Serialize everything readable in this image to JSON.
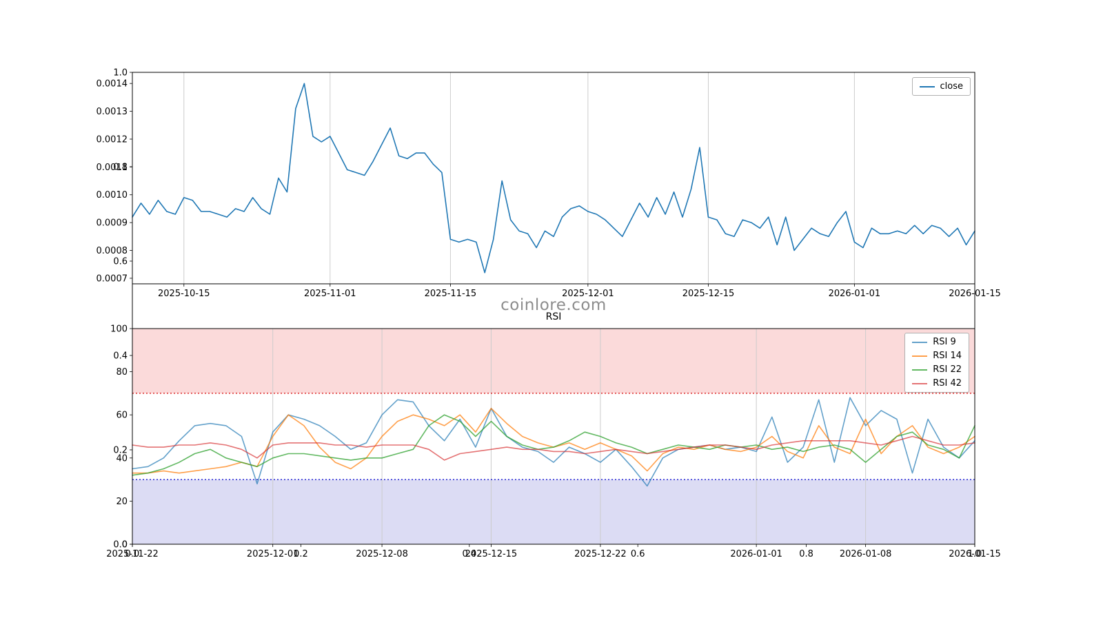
{
  "watermark": "coinlore.com",
  "overlay_axis": {
    "yticks": [
      {
        "label": "0.0",
        "pos": 0.0
      },
      {
        "label": "0.2",
        "pos": 0.2
      },
      {
        "label": "0.4",
        "pos": 0.4
      },
      {
        "label": "0.6",
        "pos": 0.6
      },
      {
        "label": "0.8",
        "pos": 0.8
      },
      {
        "label": "1.0",
        "pos": 1.0
      }
    ],
    "xticks": [
      {
        "label": "0.0",
        "pos": 0.0
      },
      {
        "label": "0.2",
        "pos": 0.2
      },
      {
        "label": "0.4",
        "pos": 0.4
      },
      {
        "label": "0.6",
        "pos": 0.6
      },
      {
        "label": "0.8",
        "pos": 0.8
      },
      {
        "label": "1.0",
        "pos": 1.0
      }
    ]
  },
  "chart_data": [
    {
      "type": "line",
      "title": "",
      "x_start": "2025-10-09",
      "x_end": "2026-01-15",
      "ylim": [
        0.00068,
        0.00144
      ],
      "grid": "vertical",
      "legend_position": "upper right",
      "xticks": [
        {
          "label": "2025-10-15",
          "pos": 0.0612
        },
        {
          "label": "2025-11-01",
          "pos": 0.2347
        },
        {
          "label": "2025-11-15",
          "pos": 0.3776
        },
        {
          "label": "2025-12-01",
          "pos": 0.5408
        },
        {
          "label": "2025-12-15",
          "pos": 0.6837
        },
        {
          "label": "2026-01-01",
          "pos": 0.8571
        },
        {
          "label": "2026-01-15",
          "pos": 1.0
        }
      ],
      "yticks": [
        {
          "label": "0.0007",
          "value": 0.0007
        },
        {
          "label": "0.0008",
          "value": 0.0008
        },
        {
          "label": "0.0009",
          "value": 0.0009
        },
        {
          "label": "0.0010",
          "value": 0.001
        },
        {
          "label": "0.0011",
          "value": 0.0011
        },
        {
          "label": "0.0012",
          "value": 0.0012
        },
        {
          "label": "0.0013",
          "value": 0.0013
        },
        {
          "label": "0.0014",
          "value": 0.0014
        }
      ],
      "series": [
        {
          "name": "close",
          "color": "#1f77b4",
          "opacity": 1,
          "values": [
            0.00092,
            0.00097,
            0.00093,
            0.00098,
            0.00094,
            0.00093,
            0.00099,
            0.00098,
            0.00094,
            0.00094,
            0.00093,
            0.00092,
            0.00095,
            0.00094,
            0.00099,
            0.00095,
            0.00093,
            0.00106,
            0.00101,
            0.00131,
            0.0014,
            0.00121,
            0.00119,
            0.00121,
            0.00115,
            0.00109,
            0.00108,
            0.00107,
            0.00112,
            0.00118,
            0.00124,
            0.00114,
            0.00113,
            0.00115,
            0.00115,
            0.00111,
            0.00108,
            0.00084,
            0.00083,
            0.00084,
            0.00083,
            0.00072,
            0.00084,
            0.00105,
            0.00091,
            0.00087,
            0.00086,
            0.00081,
            0.00087,
            0.00085,
            0.00092,
            0.00095,
            0.00096,
            0.00094,
            0.00093,
            0.00091,
            0.00088,
            0.00085,
            0.00091,
            0.00097,
            0.00092,
            0.00099,
            0.00093,
            0.00101,
            0.00092,
            0.00102,
            0.00117,
            0.00092,
            0.00091,
            0.00086,
            0.00085,
            0.00091,
            0.0009,
            0.00088,
            0.00092,
            0.00082,
            0.00092,
            0.0008,
            0.00084,
            0.00088,
            0.00086,
            0.00085,
            0.0009,
            0.00094,
            0.00083,
            0.00081,
            0.00088,
            0.00086,
            0.00086,
            0.00087,
            0.00086,
            0.00089,
            0.00086,
            0.00089,
            0.00088,
            0.00085,
            0.00088,
            0.00082,
            0.00087
          ]
        }
      ]
    },
    {
      "type": "line",
      "title": "RSI",
      "x_start": "2025-11-22",
      "x_end": "2026-01-15",
      "ylim": [
        0,
        100
      ],
      "grid": "vertical",
      "legend_position": "upper right",
      "bands": [
        {
          "from": 70,
          "to": 100,
          "color": "#fbdada"
        },
        {
          "from": 0,
          "to": 30,
          "color": "#dcdcf4"
        }
      ],
      "hlines": [
        {
          "y": 70,
          "color": "#d40000"
        },
        {
          "y": 30,
          "color": "#0000cc"
        }
      ],
      "xticks": [
        {
          "label": "2025-11-22",
          "pos": 0.0
        },
        {
          "label": "2025-12-01",
          "pos": 0.1667
        },
        {
          "label": "2025-12-08",
          "pos": 0.2963
        },
        {
          "label": "2025-12-15",
          "pos": 0.4259
        },
        {
          "label": "2025-12-22",
          "pos": 0.5556
        },
        {
          "label": "2026-01-01",
          "pos": 0.7407
        },
        {
          "label": "2026-01-08",
          "pos": 0.8704
        },
        {
          "label": "2026-01-15",
          "pos": 1.0
        }
      ],
      "yticks": [
        {
          "label": "0",
          "value": 0
        },
        {
          "label": "20",
          "value": 20
        },
        {
          "label": "40",
          "value": 40
        },
        {
          "label": "60",
          "value": 60
        },
        {
          "label": "80",
          "value": 80
        },
        {
          "label": "100",
          "value": 100
        }
      ],
      "series": [
        {
          "name": "RSI 9",
          "color": "#1f77b4",
          "opacity": 0.7,
          "values": [
            35,
            36,
            40,
            48,
            55,
            56,
            55,
            50,
            28,
            52,
            60,
            58,
            55,
            50,
            44,
            47,
            60,
            67,
            66,
            55,
            48,
            58,
            45,
            63,
            50,
            45,
            43,
            38,
            45,
            42,
            38,
            44,
            36,
            27,
            40,
            44,
            45,
            46,
            44,
            45,
            43,
            59,
            38,
            45,
            67,
            38,
            68,
            55,
            62,
            58,
            33,
            58,
            45,
            40,
            48
          ]
        },
        {
          "name": "RSI 14",
          "color": "#ff7f0e",
          "opacity": 0.75,
          "values": [
            33,
            33,
            34,
            33,
            34,
            35,
            36,
            38,
            36,
            50,
            60,
            55,
            45,
            38,
            35,
            40,
            50,
            57,
            60,
            58,
            55,
            60,
            52,
            63,
            56,
            50,
            47,
            45,
            47,
            44,
            47,
            44,
            41,
            34,
            42,
            45,
            44,
            46,
            44,
            43,
            45,
            50,
            43,
            40,
            55,
            45,
            42,
            58,
            42,
            50,
            55,
            45,
            42,
            45,
            50
          ]
        },
        {
          "name": "RSI 22",
          "color": "#2ca02c",
          "opacity": 0.75,
          "values": [
            32,
            33,
            35,
            38,
            42,
            44,
            40,
            38,
            36,
            40,
            42,
            42,
            41,
            40,
            39,
            40,
            40,
            42,
            44,
            55,
            60,
            57,
            50,
            57,
            50,
            46,
            44,
            45,
            48,
            52,
            50,
            47,
            45,
            42,
            44,
            46,
            45,
            44,
            46,
            45,
            46,
            44,
            45,
            43,
            45,
            46,
            44,
            38,
            44,
            50,
            52,
            46,
            44,
            40,
            55
          ]
        },
        {
          "name": "RSI 42",
          "color": "#d62728",
          "opacity": 0.65,
          "values": [
            46,
            45,
            45,
            46,
            46,
            47,
            46,
            44,
            40,
            46,
            47,
            47,
            47,
            46,
            46,
            45,
            46,
            46,
            46,
            44,
            39,
            42,
            43,
            44,
            45,
            44,
            44,
            43,
            43,
            42,
            43,
            44,
            43,
            42,
            43,
            44,
            45,
            46,
            46,
            45,
            44,
            46,
            47,
            48,
            48,
            48,
            48,
            47,
            46,
            48,
            50,
            48,
            46,
            46,
            47
          ]
        }
      ]
    }
  ]
}
